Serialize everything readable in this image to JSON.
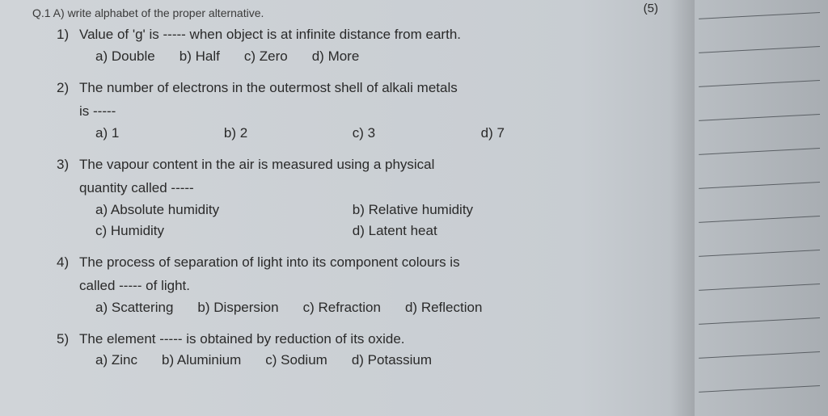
{
  "header": {
    "fragment": "Q.1 A) write alphabet of the proper alternative.",
    "topRight": "(5)"
  },
  "questions": [
    {
      "num": "1)",
      "text": "Value of 'g' is ----- when object is at infinite distance from earth.",
      "optLayout": "four-col-wide",
      "options": [
        {
          "letter": "a)",
          "text": "Double"
        },
        {
          "letter": "b)",
          "text": "Half"
        },
        {
          "letter": "c)",
          "text": "Zero"
        },
        {
          "letter": "d)",
          "text": "More"
        }
      ]
    },
    {
      "num": "2)",
      "text": "The number of electrons in the outermost shell of alkali metals",
      "continue": "is -----",
      "optLayout": "four-col",
      "options": [
        {
          "letter": "a)",
          "text": "1"
        },
        {
          "letter": "b)",
          "text": "2"
        },
        {
          "letter": "c)",
          "text": "3"
        },
        {
          "letter": "d)",
          "text": "7"
        }
      ]
    },
    {
      "num": "3)",
      "text": "The vapour content in the air is measured using a physical",
      "continue": "quantity called -----",
      "optLayout": "two-col",
      "options": [
        {
          "letter": "a)",
          "text": "Absolute humidity"
        },
        {
          "letter": "b)",
          "text": "Relative humidity"
        },
        {
          "letter": "c)",
          "text": "Humidity"
        },
        {
          "letter": "d)",
          "text": "Latent heat"
        }
      ]
    },
    {
      "num": "4)",
      "text": "The process of separation of light into its component colours is",
      "continue": "called ----- of light.",
      "optLayout": "four-col-wide",
      "options": [
        {
          "letter": "a)",
          "text": "Scattering"
        },
        {
          "letter": "b)",
          "text": "Dispersion"
        },
        {
          "letter": "c)",
          "text": "Refraction"
        },
        {
          "letter": "d)",
          "text": "Reflection"
        }
      ]
    },
    {
      "num": "5)",
      "text": "The element ----- is obtained by reduction of its oxide.",
      "optLayout": "four-col-wide",
      "options": [
        {
          "letter": "a)",
          "text": "Zinc"
        },
        {
          "letter": "b)",
          "text": "Aluminium"
        },
        {
          "letter": "c)",
          "text": "Sodium"
        },
        {
          "letter": "d)",
          "text": "Potassium"
        }
      ]
    }
  ],
  "ruledLines": {
    "count": 12,
    "startY": 15,
    "spacing": 42,
    "color": "#5a5f64"
  },
  "colors": {
    "bgLeft": "#d0d4d8",
    "bgRight": "#a8adb2",
    "text": "#2a2a2a"
  }
}
